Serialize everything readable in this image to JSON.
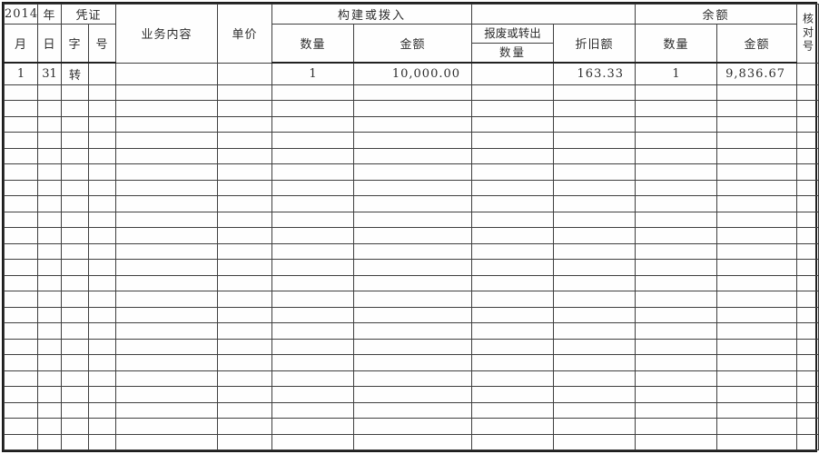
{
  "page": {
    "background": "#ffffff",
    "grid_line_color": "#3f3f3f",
    "outer_border_color": "#1f1f1f",
    "text_color": "#2d2d2d"
  },
  "table": {
    "header": {
      "year": "2014",
      "year_label": "年",
      "voucher_label": "凭证",
      "month_label": "月",
      "day_label": "日",
      "word_label": "字",
      "no_label": "号",
      "business_label": "业务内容",
      "unit_price_label": "单价",
      "acquire_group_label": "构建或拨入",
      "acquire_qty_label": "数量",
      "acquire_amount_label": "金额",
      "dispose_group_label": "报废或转出",
      "dispose_qty_label": "数量",
      "depreciation_label": "折旧额",
      "balance_group_label": "余额",
      "balance_qty_label": "数量",
      "balance_amount_label": "金额",
      "check_label": "核对号"
    },
    "rows": [
      {
        "month": "1",
        "day": "31",
        "word": "转",
        "no": "",
        "business": "",
        "unit_price": "",
        "acquire_qty": "1",
        "acquire_amount": "10,000.00",
        "dispose_qty": "",
        "depreciation": "163.33",
        "balance_qty": "1",
        "balance_amount": "9,836.67",
        "check": ""
      }
    ],
    "empty_row_count": 23
  }
}
